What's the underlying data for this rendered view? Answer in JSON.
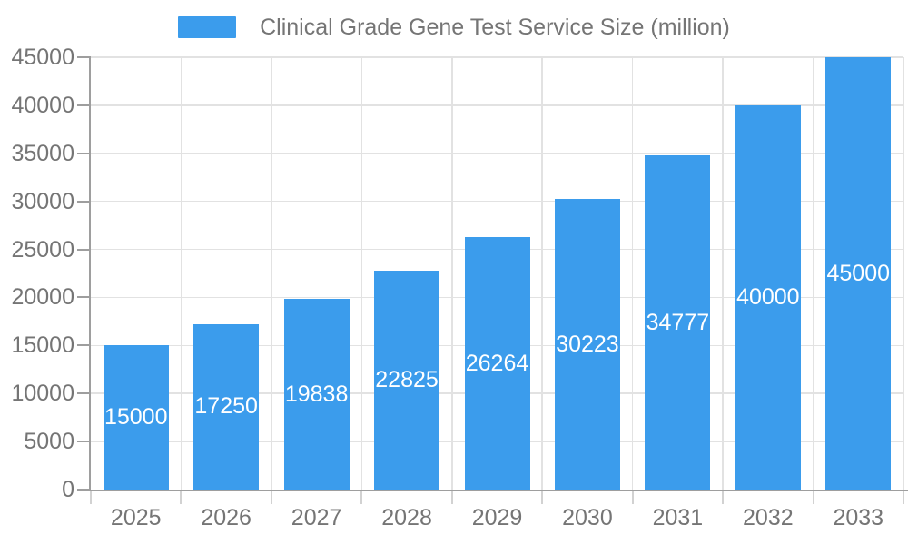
{
  "chart_data": {
    "type": "bar",
    "title": "Clinical Grade Gene Test Service Size (million)",
    "legend": [
      "Clinical Grade Gene Test Service Size (million)"
    ],
    "legend_position": "top",
    "categories": [
      "2025",
      "2026",
      "2027",
      "2028",
      "2029",
      "2030",
      "2031",
      "2032",
      "2033"
    ],
    "values": [
      15000,
      17250,
      19838,
      22825,
      26264,
      30223,
      34777,
      40000,
      45000
    ],
    "value_labels": [
      "15000",
      "17250",
      "19838",
      "22825",
      "26264",
      "30223",
      "34777",
      "40000",
      "45000"
    ],
    "xlabel": "",
    "ylabel": "",
    "ylim": [
      0,
      45000
    ],
    "ytick_step": 5000,
    "ytick_labels": [
      "0",
      "5000",
      "10000",
      "15000",
      "20000",
      "25000",
      "30000",
      "35000",
      "40000",
      "45000"
    ],
    "grid": true,
    "colors": {
      "bar": "#3B9CEC",
      "value_label": "#FFFFFF",
      "axis_text": "#757575",
      "grid_line": "#E2E2E2",
      "axis_line": "#9E9E9E",
      "x_tick": "#D2D2D2",
      "background": "#FFFFFF"
    }
  }
}
